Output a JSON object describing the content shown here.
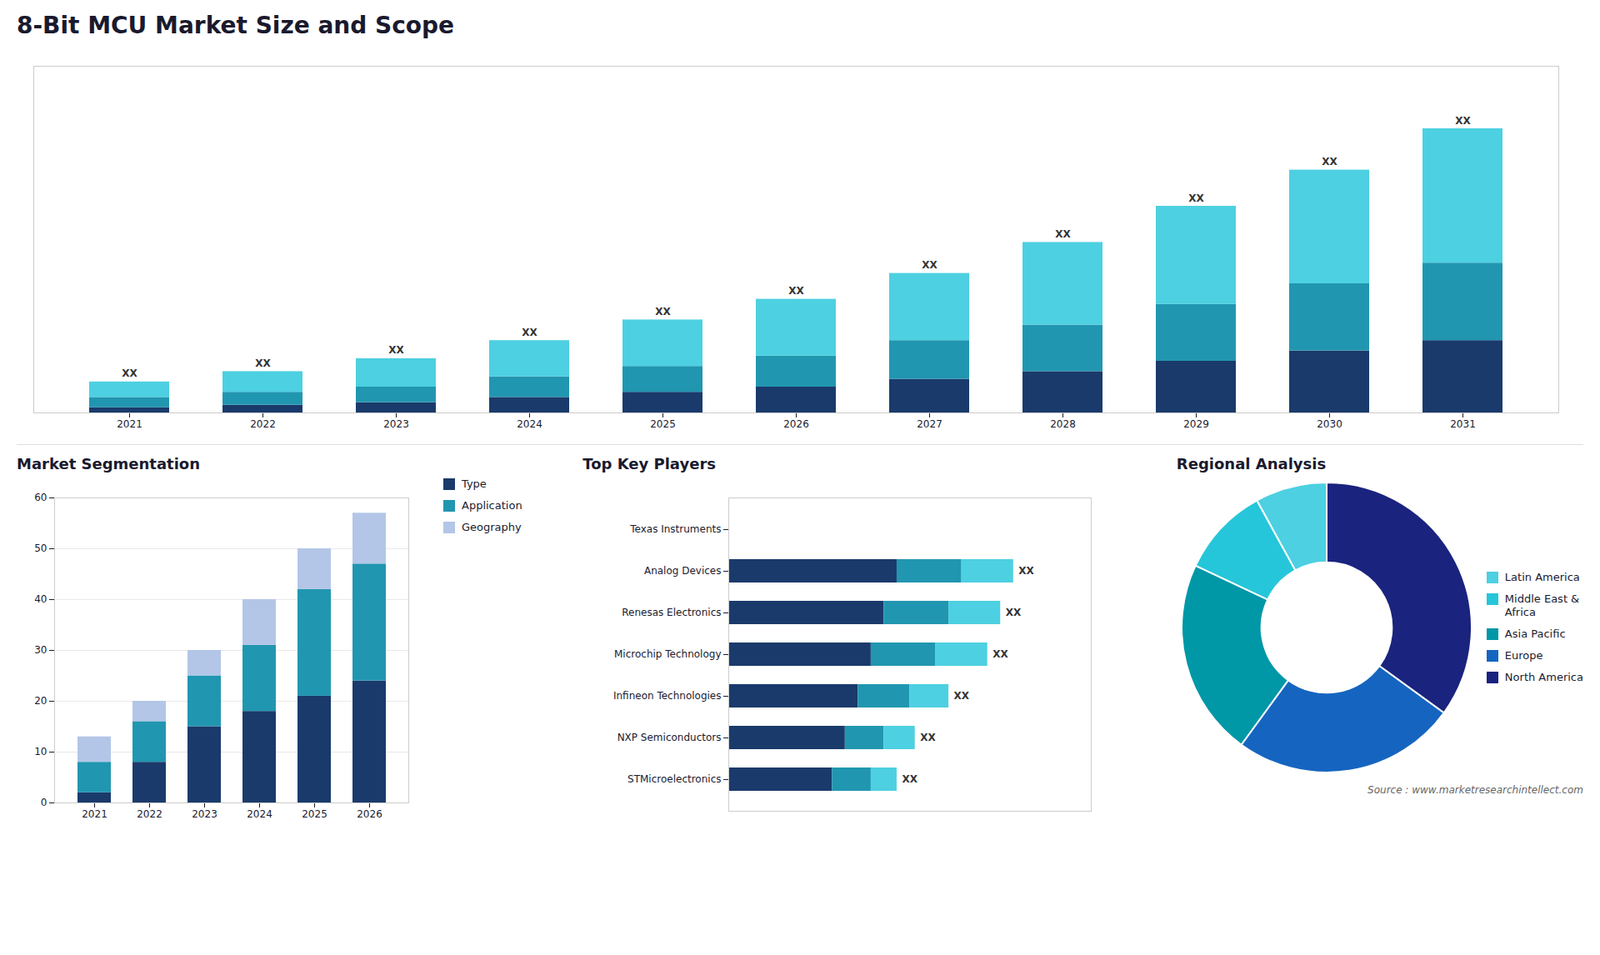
{
  "chart_data": [
    {
      "type": "bar",
      "stacked": true,
      "title": "8-Bit MCU Market Size and Scope",
      "categories": [
        "2021",
        "2022",
        "2023",
        "2024",
        "2025",
        "2026",
        "2027",
        "2028",
        "2029",
        "2030",
        "2031"
      ],
      "series": [
        {
          "color": "#1a3a6b",
          "values": [
            1,
            1.5,
            2,
            3,
            4,
            5,
            6.5,
            8,
            10,
            12,
            14
          ]
        },
        {
          "color": "#2196b0",
          "values": [
            2,
            2.5,
            3,
            4,
            5,
            6,
            7.5,
            9,
            11,
            13,
            15
          ]
        },
        {
          "color": "#4dd0e1",
          "values": [
            3,
            4,
            5.5,
            7,
            9,
            11,
            13,
            16,
            19,
            22,
            26
          ]
        }
      ],
      "ylim": [
        0,
        67.1
      ],
      "tick_labels": "x",
      "grid": false,
      "bar_labels": [
        "XX",
        "XX",
        "XX",
        "XX",
        "XX",
        "XX",
        "XX",
        "XX",
        "XX",
        "XX",
        "XX"
      ]
    },
    {
      "type": "bar",
      "stacked": true,
      "title": "Market Segmentation",
      "categories": [
        "2021",
        "2022",
        "2023",
        "2024",
        "2025",
        "2026"
      ],
      "series": [
        {
          "name": "Type",
          "color": "#1a3a6b",
          "values": [
            2,
            8,
            15,
            18,
            21,
            24
          ]
        },
        {
          "name": "Application",
          "color": "#2196b0",
          "values": [
            6,
            8,
            10,
            13,
            21,
            23
          ]
        },
        {
          "name": "Geography",
          "color": "#b3c6e7",
          "values": [
            5,
            4,
            5,
            9,
            8,
            10
          ]
        }
      ],
      "ylim": [
        0,
        60
      ],
      "yticks": [
        0,
        10,
        20,
        30,
        40,
        50,
        60
      ],
      "grid": true,
      "legend": "right"
    },
    {
      "type": "bar",
      "stacked": true,
      "orientation": "horizontal",
      "title": "Top Key Players",
      "categories": [
        "Texas Instruments",
        "Analog Devices",
        "Renesas Electronics",
        "Microchip Technology",
        "Infineon Technologies",
        "NXP Semiconductors",
        "STMicroelectronics"
      ],
      "series": [
        {
          "color": "#1a3a6b",
          "values": [
            0,
            6.5,
            6.0,
            5.5,
            5.0,
            4.5,
            4.0
          ]
        },
        {
          "color": "#2196b0",
          "values": [
            0,
            2.5,
            2.5,
            2.5,
            2.0,
            1.5,
            1.5
          ]
        },
        {
          "color": "#4dd0e1",
          "values": [
            0,
            2.0,
            2.0,
            2.0,
            1.5,
            1.2,
            1.0
          ]
        }
      ],
      "xlim": [
        0,
        14
      ],
      "tick_labels": "y",
      "grid": false,
      "bar_labels": [
        null,
        "XX",
        "XX",
        "XX",
        "XX",
        "XX",
        "XX"
      ]
    },
    {
      "type": "pie",
      "title": "Regional Analysis",
      "categories": [
        "Latin America",
        "Middle East &\nAfrica",
        "Asia Pacific",
        "Europe",
        "North America"
      ],
      "values": [
        8,
        10,
        22,
        25,
        35
      ],
      "colors": [
        "#4dd0e1",
        "#26c6da",
        "#0097a7",
        "#1565c0",
        "#1a237e"
      ],
      "legend": "right",
      "caption": "Source : www.marketresearchintellect.com"
    }
  ]
}
